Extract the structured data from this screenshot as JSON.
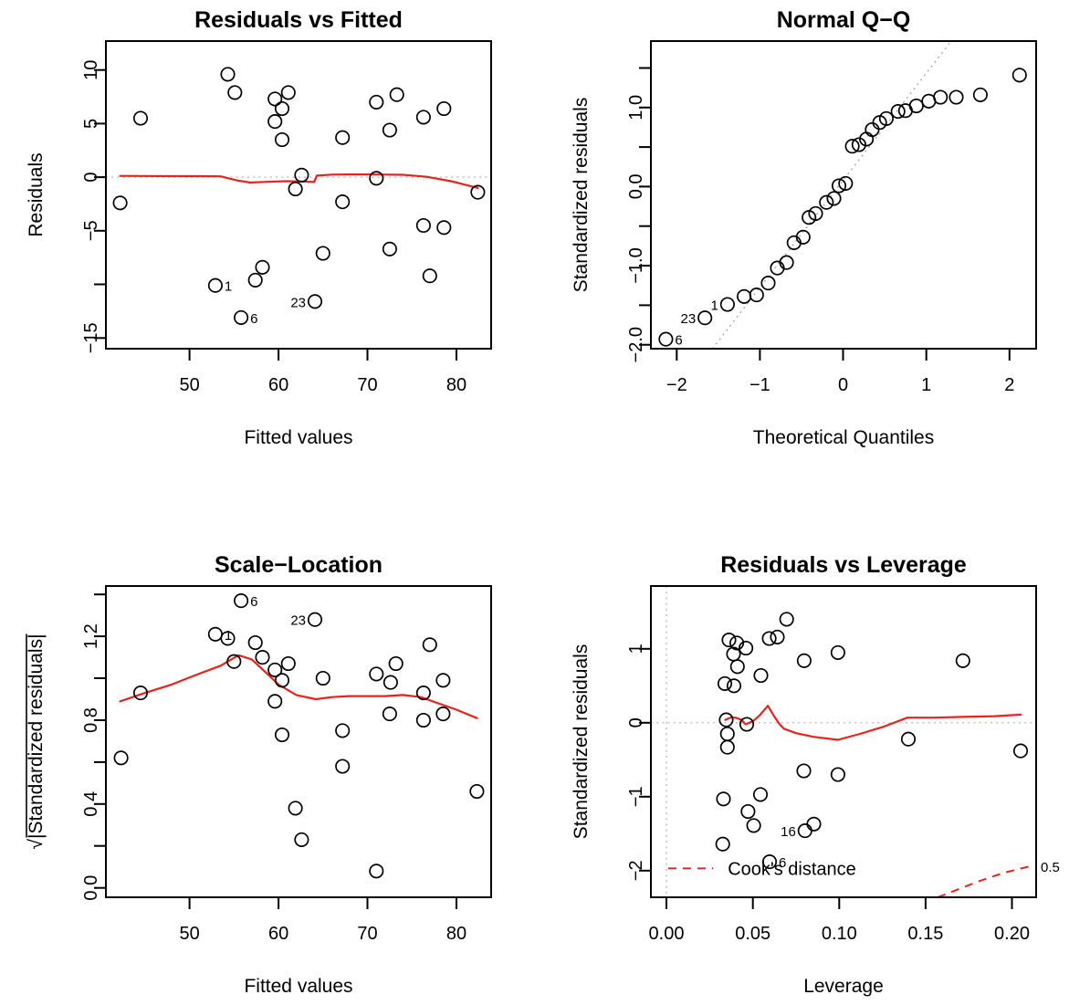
{
  "figure": {
    "description": "R linear model diagnostic plots (2x2)",
    "colors": {
      "background": "#ffffff",
      "point": "#000000",
      "smooth": "#e8231d",
      "guide": "#bcbcbc",
      "text": "#000000",
      "cooks_label": "#e8231d"
    }
  },
  "chart_data": [
    {
      "type": "scatter",
      "row": "top",
      "name": "residuals-vs-fitted",
      "title": "Residuals vs Fitted",
      "xlabel": "Fitted values",
      "ylabel": "Residuals",
      "ylabel_overline": false,
      "xlim": [
        40.6,
        83.9
      ],
      "ylim": [
        -16.0,
        12.7
      ],
      "grid": false,
      "xticks": {
        "values": [
          50,
          60,
          70,
          80
        ],
        "labels": [
          "50",
          "60",
          "70",
          "80"
        ]
      },
      "yticks": {
        "values": [
          10,
          5,
          0,
          -5,
          -10,
          -15
        ],
        "labels": [
          "10",
          "5",
          "0",
          "−5",
          "",
          "−15"
        ]
      },
      "guide_h": [
        0
      ],
      "guide_v": [],
      "refline": null,
      "smooth": [
        [
          42.2,
          0.12
        ],
        [
          45,
          0.11
        ],
        [
          48,
          0.1
        ],
        [
          51,
          0.1
        ],
        [
          53.5,
          0.08
        ],
        [
          55.3,
          -0.3
        ],
        [
          56.8,
          -0.5
        ],
        [
          58.7,
          -0.43
        ],
        [
          60.9,
          -0.37
        ],
        [
          62.5,
          -0.4
        ],
        [
          64.0,
          -0.45
        ],
        [
          64.3,
          0.15
        ],
        [
          66,
          0.24
        ],
        [
          68,
          0.26
        ],
        [
          70,
          0.26
        ],
        [
          72,
          0.24
        ],
        [
          74,
          0.22
        ],
        [
          75.5,
          0.12
        ],
        [
          76.8,
          0.02
        ],
        [
          79.4,
          -0.37
        ],
        [
          82.4,
          -1.0
        ]
      ],
      "points": [
        [
          42.2,
          -2.4
        ],
        [
          44.5,
          5.5
        ],
        [
          52.9,
          -10.1
        ],
        [
          54.3,
          9.6
        ],
        [
          55.1,
          7.9
        ],
        [
          55.8,
          -13.1
        ],
        [
          57.4,
          -9.6
        ],
        [
          58.2,
          -8.4
        ],
        [
          59.6,
          7.3
        ],
        [
          59.6,
          5.2
        ],
        [
          60.4,
          6.4
        ],
        [
          60.4,
          3.5
        ],
        [
          61.1,
          7.9
        ],
        [
          61.9,
          -1.1
        ],
        [
          62.6,
          0.2
        ],
        [
          64.1,
          -11.6
        ],
        [
          65.0,
          -7.1
        ],
        [
          67.2,
          3.7
        ],
        [
          67.2,
          -2.3
        ],
        [
          71.0,
          7.0
        ],
        [
          71.0,
          -0.1
        ],
        [
          72.5,
          4.4
        ],
        [
          72.5,
          -6.7
        ],
        [
          73.3,
          7.7
        ],
        [
          76.3,
          5.6
        ],
        [
          76.3,
          -4.5
        ],
        [
          77.0,
          -9.2
        ],
        [
          78.6,
          6.4
        ],
        [
          78.6,
          -4.7
        ],
        [
          82.4,
          -1.4
        ]
      ],
      "point_labels": [
        {
          "x": 52.9,
          "y": -10.1,
          "text": "1",
          "side": "right"
        },
        {
          "x": 55.8,
          "y": -13.1,
          "text": "6",
          "side": "right"
        },
        {
          "x": 64.1,
          "y": -11.6,
          "text": "23",
          "side": "left"
        }
      ],
      "cooks_curve": null,
      "legend": null
    },
    {
      "type": "scatter",
      "row": "top",
      "name": "normal-qq",
      "title": "Normal Q−Q",
      "xlabel": "Theoretical Quantiles",
      "ylabel": "Standardized residuals",
      "ylabel_overline": false,
      "xlim": [
        -2.31,
        2.32
      ],
      "ylim": [
        -2.05,
        1.84
      ],
      "grid": false,
      "xticks": {
        "values": [
          -2,
          -1,
          0,
          1,
          2
        ],
        "labels": [
          "−2",
          "−1",
          "0",
          "1",
          "2"
        ]
      },
      "yticks": {
        "values": [
          1.5,
          1.0,
          0.5,
          0.0,
          -0.5,
          -1.0,
          -1.5,
          -2.0
        ],
        "labels": [
          "",
          "1.0",
          "",
          "0.0",
          "",
          "−1.0",
          "",
          "−2.0"
        ]
      },
      "guide_h": [],
      "guide_v": [],
      "refline": [
        [
          -1.57,
          -2.05
        ],
        [
          1.3,
          1.84
        ]
      ],
      "smooth": null,
      "points": [
        [
          -2.13,
          -1.93
        ],
        [
          -1.66,
          -1.66
        ],
        [
          -1.39,
          -1.49
        ],
        [
          -1.19,
          -1.39
        ],
        [
          -1.04,
          -1.37
        ],
        [
          -0.9,
          -1.22
        ],
        [
          -0.79,
          -1.03
        ],
        [
          -0.68,
          -0.96
        ],
        [
          -0.59,
          -0.71
        ],
        [
          -0.48,
          -0.64
        ],
        [
          -0.41,
          -0.39
        ],
        [
          -0.33,
          -0.34
        ],
        [
          -0.2,
          -0.2
        ],
        [
          -0.11,
          -0.15
        ],
        [
          -0.05,
          0.01
        ],
        [
          0.03,
          0.04
        ],
        [
          0.11,
          0.51
        ],
        [
          0.19,
          0.53
        ],
        [
          0.28,
          0.6
        ],
        [
          0.35,
          0.72
        ],
        [
          0.44,
          0.81
        ],
        [
          0.52,
          0.86
        ],
        [
          0.66,
          0.95
        ],
        [
          0.75,
          0.96
        ],
        [
          0.88,
          1.02
        ],
        [
          1.03,
          1.08
        ],
        [
          1.17,
          1.13
        ],
        [
          1.36,
          1.13
        ],
        [
          1.65,
          1.16
        ],
        [
          2.12,
          1.41
        ]
      ],
      "point_labels": [
        {
          "x": -2.13,
          "y": -1.93,
          "text": "6",
          "side": "right"
        },
        {
          "x": -1.66,
          "y": -1.66,
          "text": "23",
          "side": "left"
        },
        {
          "x": -1.39,
          "y": -1.49,
          "text": "1",
          "side": "left"
        }
      ],
      "cooks_curve": null,
      "legend": null
    },
    {
      "type": "scatter",
      "row": "bottom",
      "name": "scale-location",
      "title": "Scale−Location",
      "xlabel": "Fitted values",
      "ylabel": "√|Standardized residuals|",
      "ylabel_overline": true,
      "xlim": [
        40.6,
        83.9
      ],
      "ylim": [
        -0.045,
        1.44
      ],
      "grid": false,
      "xticks": {
        "values": [
          50,
          60,
          70,
          80
        ],
        "labels": [
          "50",
          "60",
          "70",
          "80"
        ]
      },
      "yticks": {
        "values": [
          0.0,
          0.2,
          0.4,
          0.6,
          0.8,
          1.0,
          1.2,
          1.4
        ],
        "labels": [
          "0.0",
          "",
          "0.4",
          "",
          "0.8",
          "",
          "1.2",
          ""
        ]
      },
      "guide_h": [],
      "guide_v": [],
      "refline": null,
      "smooth": [
        [
          42.2,
          0.89
        ],
        [
          45,
          0.93
        ],
        [
          48,
          0.97
        ],
        [
          51,
          1.02
        ],
        [
          53.5,
          1.06
        ],
        [
          55.5,
          1.11
        ],
        [
          57,
          1.09
        ],
        [
          58.5,
          1.03
        ],
        [
          60,
          0.97
        ],
        [
          62,
          0.92
        ],
        [
          64.2,
          0.9
        ],
        [
          66,
          0.91
        ],
        [
          68,
          0.915
        ],
        [
          70,
          0.915
        ],
        [
          72,
          0.915
        ],
        [
          74,
          0.92
        ],
        [
          76,
          0.91
        ],
        [
          78,
          0.88
        ],
        [
          80,
          0.85
        ],
        [
          82.3,
          0.81
        ]
      ],
      "points": [
        [
          42.3,
          0.62
        ],
        [
          44.5,
          0.93
        ],
        [
          52.9,
          1.21
        ],
        [
          54.3,
          1.19
        ],
        [
          55.0,
          1.08
        ],
        [
          55.8,
          1.37
        ],
        [
          57.4,
          1.17
        ],
        [
          58.2,
          1.1
        ],
        [
          59.6,
          1.04
        ],
        [
          59.6,
          0.89
        ],
        [
          60.4,
          0.99
        ],
        [
          60.4,
          0.73
        ],
        [
          61.1,
          1.07
        ],
        [
          61.9,
          0.38
        ],
        [
          62.6,
          0.23
        ],
        [
          64.1,
          1.28
        ],
        [
          65.0,
          1.0
        ],
        [
          67.2,
          0.75
        ],
        [
          67.2,
          0.58
        ],
        [
          71.0,
          1.02
        ],
        [
          71.0,
          0.08
        ],
        [
          72.5,
          0.83
        ],
        [
          72.6,
          0.98
        ],
        [
          73.2,
          1.07
        ],
        [
          76.3,
          0.93
        ],
        [
          76.3,
          0.8
        ],
        [
          77.0,
          1.16
        ],
        [
          78.5,
          0.99
        ],
        [
          78.5,
          0.83
        ],
        [
          82.3,
          0.46
        ]
      ],
      "point_labels": [
        {
          "x": 55.8,
          "y": 1.37,
          "text": "6",
          "side": "right"
        },
        {
          "x": 64.1,
          "y": 1.28,
          "text": "23",
          "side": "left"
        },
        {
          "x": 52.9,
          "y": 1.21,
          "text": "1",
          "side": "right"
        }
      ],
      "cooks_curve": null,
      "legend": null
    },
    {
      "type": "scatter",
      "row": "bottom",
      "name": "residuals-vs-leverage",
      "title": "Residuals vs Leverage",
      "xlabel": "Leverage",
      "ylabel": "Standardized residuals",
      "ylabel_overline": false,
      "xlim": [
        -0.009,
        0.214
      ],
      "ylim": [
        -2.36,
        1.85
      ],
      "grid": false,
      "xticks": {
        "values": [
          0,
          0.05,
          0.1,
          0.15,
          0.2
        ],
        "labels": [
          "0.00",
          "0.05",
          "0.10",
          "0.15",
          "0.20"
        ]
      },
      "yticks": {
        "values": [
          1,
          0,
          -1,
          -2
        ],
        "labels": [
          "1",
          "0",
          "−1",
          "−2"
        ]
      },
      "guide_h": [
        0
      ],
      "guide_v": [
        0
      ],
      "refline": null,
      "smooth": [
        [
          0.034,
          0.04
        ],
        [
          0.037,
          0.07
        ],
        [
          0.04,
          0.07
        ],
        [
          0.0435,
          0.04
        ],
        [
          0.0458,
          -0.02
        ],
        [
          0.05,
          0.02
        ],
        [
          0.054,
          0.1
        ],
        [
          0.0587,
          0.23
        ],
        [
          0.062,
          0.1
        ],
        [
          0.0655,
          -0.02
        ],
        [
          0.068,
          -0.08
        ],
        [
          0.075,
          -0.14
        ],
        [
          0.085,
          -0.19
        ],
        [
          0.0992,
          -0.23
        ],
        [
          0.112,
          -0.15
        ],
        [
          0.126,
          -0.05
        ],
        [
          0.1395,
          0.07
        ],
        [
          0.155,
          0.07
        ],
        [
          0.171,
          0.08
        ],
        [
          0.19,
          0.09
        ],
        [
          0.205,
          0.11
        ]
      ],
      "points": [
        [
          0.0362,
          1.12
        ],
        [
          0.0407,
          1.08
        ],
        [
          0.046,
          1.01
        ],
        [
          0.0388,
          0.93
        ],
        [
          0.0411,
          0.76
        ],
        [
          0.0595,
          1.14
        ],
        [
          0.0642,
          1.16
        ],
        [
          0.0696,
          1.4
        ],
        [
          0.0797,
          0.84
        ],
        [
          0.0993,
          0.95
        ],
        [
          0.1716,
          0.84
        ],
        [
          0.0547,
          0.64
        ],
        [
          0.0338,
          0.53
        ],
        [
          0.0391,
          0.5
        ],
        [
          0.0346,
          0.04
        ],
        [
          0.0465,
          -0.02
        ],
        [
          0.0353,
          -0.15
        ],
        [
          0.0353,
          -0.33
        ],
        [
          0.14,
          -0.22
        ],
        [
          0.205,
          -0.38
        ],
        [
          0.0795,
          -0.65
        ],
        [
          0.0993,
          -0.7
        ],
        [
          0.033,
          -1.03
        ],
        [
          0.0544,
          -0.97
        ],
        [
          0.0472,
          -1.2
        ],
        [
          0.0505,
          -1.39
        ],
        [
          0.0802,
          -1.46
        ],
        [
          0.0853,
          -1.37
        ],
        [
          0.0326,
          -1.64
        ],
        [
          0.0597,
          -1.88
        ]
      ],
      "point_labels": [
        {
          "x": 0.0802,
          "y": -1.46,
          "text": "16",
          "side": "left"
        },
        {
          "x": 0.0597,
          "y": -1.88,
          "text": "6",
          "side": "right"
        }
      ],
      "cooks_curve": [
        [
          0.157,
          -2.36
        ],
        [
          0.168,
          -2.26
        ],
        [
          0.18,
          -2.15
        ],
        [
          0.195,
          -2.03
        ],
        [
          0.2105,
          -1.94
        ]
      ],
      "cooks_level_label": "0.5",
      "cooks_label_y": -1.95,
      "legend": {
        "x1": 0.001,
        "x2": 0.027,
        "y": -1.97,
        "text_x": 0.0355,
        "text": "Cook's distance"
      }
    }
  ]
}
